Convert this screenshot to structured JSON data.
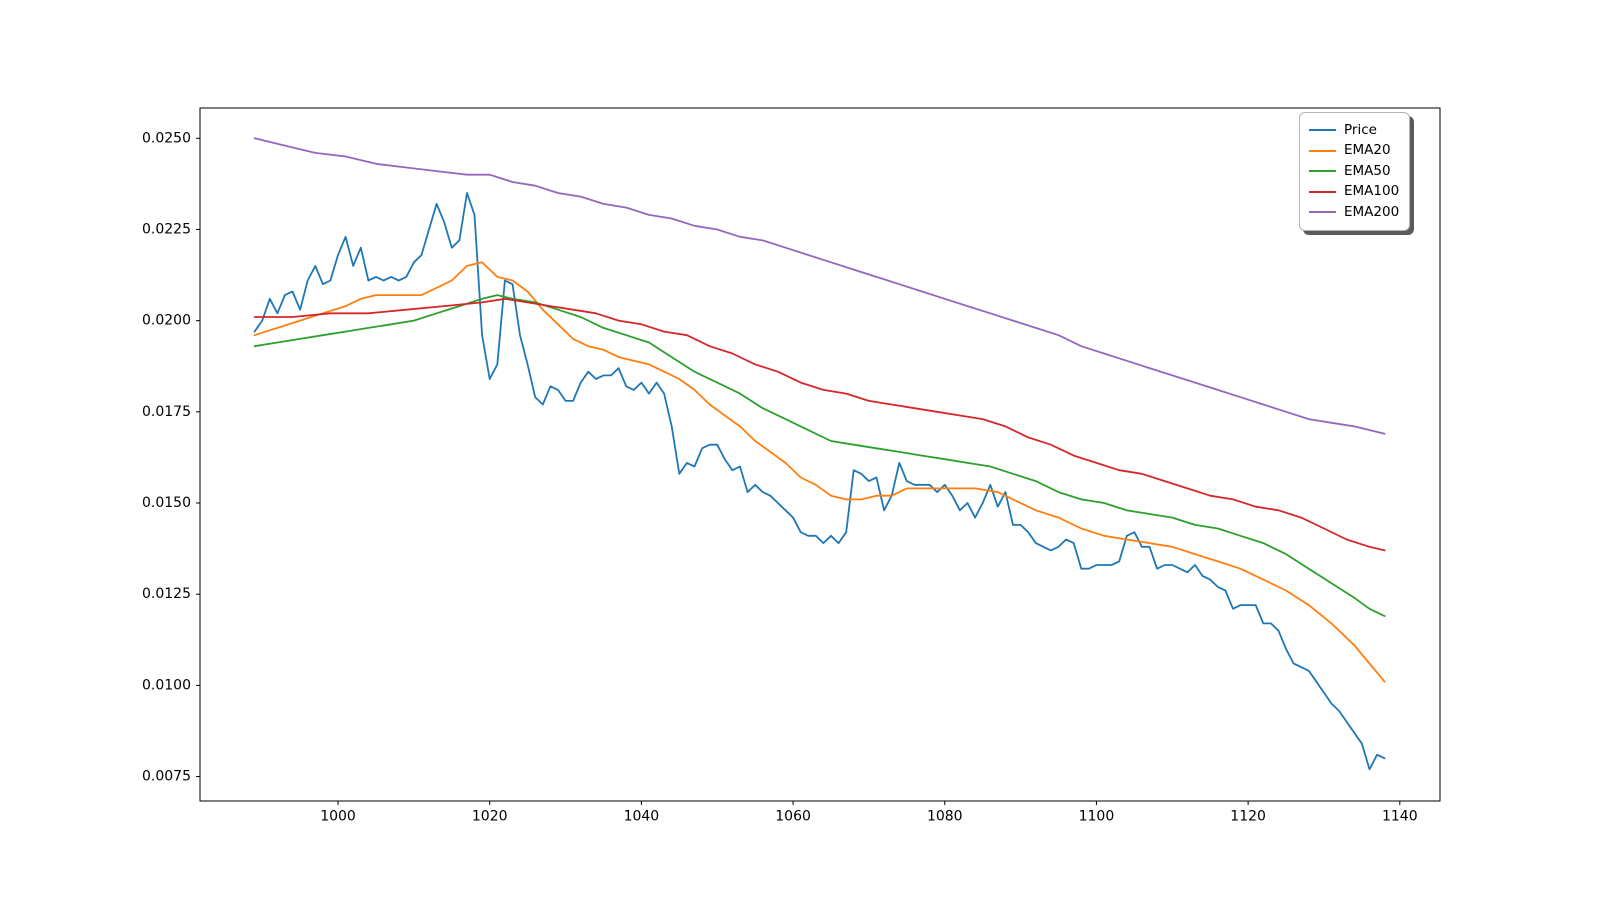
{
  "figure": {
    "kind": "matplotlib-line-chart",
    "background": "#ffffff"
  },
  "legend": {
    "position": "upper right",
    "entries": [
      {
        "label": "Price",
        "color": "#1f77b4"
      },
      {
        "label": "EMA20",
        "color": "#ff7f0e"
      },
      {
        "label": "EMA50",
        "color": "#2ca02c"
      },
      {
        "label": "EMA100",
        "color": "#d62728"
      },
      {
        "label": "EMA200",
        "color": "#9467bd"
      }
    ]
  },
  "chart_data": {
    "type": "line",
    "title": "",
    "xlabel": "",
    "ylabel": "",
    "grid": false,
    "xlim": [
      981.8,
      1145.3
    ],
    "ylim": [
      0.00683,
      0.02583
    ],
    "x_ticks": [
      1000,
      1020,
      1040,
      1060,
      1080,
      1100,
      1120,
      1140
    ],
    "y_ticks": [
      0.0075,
      0.01,
      0.0125,
      0.015,
      0.0175,
      0.02,
      0.0225,
      0.025
    ],
    "y_tick_labels": [
      "0.0075",
      "0.0100",
      "0.0125",
      "0.0150",
      "0.0175",
      "0.0200",
      "0.0225",
      "0.0250"
    ],
    "x_tick_labels": [
      "1000",
      "1020",
      "1040",
      "1060",
      "1080",
      "1100",
      "1120",
      "1140"
    ],
    "series": [
      {
        "name": "Price",
        "color": "#1f77b4",
        "x_start": 989,
        "x_step": 1,
        "values": [
          0.0197,
          0.02,
          0.0206,
          0.0202,
          0.0207,
          0.0208,
          0.0203,
          0.0211,
          0.0215,
          0.021,
          0.0211,
          0.0218,
          0.0223,
          0.0215,
          0.022,
          0.0211,
          0.0212,
          0.0211,
          0.0212,
          0.0211,
          0.0212,
          0.0216,
          0.0218,
          0.0225,
          0.0232,
          0.0227,
          0.022,
          0.0222,
          0.0235,
          0.0229,
          0.0196,
          0.0184,
          0.0188,
          0.0211,
          0.021,
          0.0196,
          0.0188,
          0.0179,
          0.0177,
          0.0182,
          0.0181,
          0.0178,
          0.0178,
          0.0183,
          0.0186,
          0.0184,
          0.0185,
          0.0185,
          0.0187,
          0.0182,
          0.0181,
          0.0183,
          0.018,
          0.0183,
          0.018,
          0.0171,
          0.0158,
          0.0161,
          0.016,
          0.0165,
          0.0166,
          0.0166,
          0.0162,
          0.0159,
          0.016,
          0.0153,
          0.0155,
          0.0153,
          0.0152,
          0.015,
          0.0148,
          0.0146,
          0.0142,
          0.0141,
          0.0141,
          0.0139,
          0.0141,
          0.0139,
          0.0142,
          0.0159,
          0.0158,
          0.0156,
          0.0157,
          0.0148,
          0.0152,
          0.0161,
          0.0156,
          0.0155,
          0.0155,
          0.0155,
          0.0153,
          0.0155,
          0.0152,
          0.0148,
          0.015,
          0.0146,
          0.015,
          0.0155,
          0.0149,
          0.0153,
          0.0144,
          0.0144,
          0.0142,
          0.0139,
          0.0138,
          0.0137,
          0.0138,
          0.014,
          0.0139,
          0.0132,
          0.0132,
          0.0133,
          0.0133,
          0.0133,
          0.0134,
          0.0141,
          0.0142,
          0.0138,
          0.0138,
          0.0132,
          0.0133,
          0.0133,
          0.0132,
          0.0131,
          0.0133,
          0.013,
          0.0129,
          0.0127,
          0.0126,
          0.0121,
          0.0122,
          0.0122,
          0.0122,
          0.0117,
          0.0117,
          0.0115,
          0.011,
          0.0106,
          0.0105,
          0.0104,
          0.0101,
          0.0098,
          0.0095,
          0.0093,
          0.009,
          0.0087,
          0.0084,
          0.0077,
          0.0081,
          0.008
        ]
      },
      {
        "name": "EMA20",
        "color": "#ff7f0e",
        "points": [
          [
            989,
            0.0196
          ],
          [
            992,
            0.0198
          ],
          [
            995,
            0.02
          ],
          [
            998,
            0.0202
          ],
          [
            1001,
            0.0204
          ],
          [
            1003,
            0.0206
          ],
          [
            1005,
            0.0207
          ],
          [
            1008,
            0.0207
          ],
          [
            1011,
            0.0207
          ],
          [
            1013,
            0.0209
          ],
          [
            1015,
            0.0211
          ],
          [
            1017,
            0.0215
          ],
          [
            1019,
            0.0216
          ],
          [
            1021,
            0.0212
          ],
          [
            1023,
            0.0211
          ],
          [
            1025,
            0.0208
          ],
          [
            1027,
            0.0203
          ],
          [
            1029,
            0.0199
          ],
          [
            1031,
            0.0195
          ],
          [
            1033,
            0.0193
          ],
          [
            1035,
            0.0192
          ],
          [
            1037,
            0.019
          ],
          [
            1039,
            0.0189
          ],
          [
            1041,
            0.0188
          ],
          [
            1043,
            0.0186
          ],
          [
            1045,
            0.0184
          ],
          [
            1047,
            0.0181
          ],
          [
            1049,
            0.0177
          ],
          [
            1051,
            0.0174
          ],
          [
            1053,
            0.0171
          ],
          [
            1055,
            0.0167
          ],
          [
            1057,
            0.0164
          ],
          [
            1059,
            0.0161
          ],
          [
            1061,
            0.0157
          ],
          [
            1063,
            0.0155
          ],
          [
            1065,
            0.0152
          ],
          [
            1067,
            0.0151
          ],
          [
            1069,
            0.0151
          ],
          [
            1071,
            0.0152
          ],
          [
            1073,
            0.0152
          ],
          [
            1075,
            0.0154
          ],
          [
            1078,
            0.0154
          ],
          [
            1081,
            0.0154
          ],
          [
            1084,
            0.0154
          ],
          [
            1087,
            0.0153
          ],
          [
            1089,
            0.0151
          ],
          [
            1092,
            0.0148
          ],
          [
            1095,
            0.0146
          ],
          [
            1098,
            0.0143
          ],
          [
            1101,
            0.0141
          ],
          [
            1104,
            0.014
          ],
          [
            1107,
            0.0139
          ],
          [
            1110,
            0.0138
          ],
          [
            1113,
            0.0136
          ],
          [
            1116,
            0.0134
          ],
          [
            1119,
            0.0132
          ],
          [
            1122,
            0.0129
          ],
          [
            1125,
            0.0126
          ],
          [
            1128,
            0.0122
          ],
          [
            1131,
            0.0117
          ],
          [
            1134,
            0.0111
          ],
          [
            1136,
            0.0106
          ],
          [
            1138,
            0.0101
          ]
        ]
      },
      {
        "name": "EMA50",
        "color": "#2ca02c",
        "points": [
          [
            989,
            0.0193
          ],
          [
            992,
            0.0194
          ],
          [
            995,
            0.0195
          ],
          [
            998,
            0.0196
          ],
          [
            1001,
            0.0197
          ],
          [
            1004,
            0.0198
          ],
          [
            1007,
            0.0199
          ],
          [
            1010,
            0.02
          ],
          [
            1013,
            0.0202
          ],
          [
            1016,
            0.0204
          ],
          [
            1019,
            0.0206
          ],
          [
            1021,
            0.0207
          ],
          [
            1023,
            0.0206
          ],
          [
            1026,
            0.0205
          ],
          [
            1029,
            0.0203
          ],
          [
            1032,
            0.0201
          ],
          [
            1035,
            0.0198
          ],
          [
            1038,
            0.0196
          ],
          [
            1041,
            0.0194
          ],
          [
            1044,
            0.019
          ],
          [
            1047,
            0.0186
          ],
          [
            1050,
            0.0183
          ],
          [
            1053,
            0.018
          ],
          [
            1056,
            0.0176
          ],
          [
            1059,
            0.0173
          ],
          [
            1062,
            0.017
          ],
          [
            1065,
            0.0167
          ],
          [
            1068,
            0.0166
          ],
          [
            1071,
            0.0165
          ],
          [
            1074,
            0.0164
          ],
          [
            1077,
            0.0163
          ],
          [
            1080,
            0.0162
          ],
          [
            1083,
            0.0161
          ],
          [
            1086,
            0.016
          ],
          [
            1089,
            0.0158
          ],
          [
            1092,
            0.0156
          ],
          [
            1095,
            0.0153
          ],
          [
            1098,
            0.0151
          ],
          [
            1101,
            0.015
          ],
          [
            1104,
            0.0148
          ],
          [
            1107,
            0.0147
          ],
          [
            1110,
            0.0146
          ],
          [
            1113,
            0.0144
          ],
          [
            1116,
            0.0143
          ],
          [
            1119,
            0.0141
          ],
          [
            1122,
            0.0139
          ],
          [
            1125,
            0.0136
          ],
          [
            1128,
            0.0132
          ],
          [
            1131,
            0.0128
          ],
          [
            1134,
            0.0124
          ],
          [
            1136,
            0.0121
          ],
          [
            1138,
            0.0119
          ]
        ]
      },
      {
        "name": "EMA100",
        "color": "#d62728",
        "points": [
          [
            989,
            0.0201
          ],
          [
            994,
            0.0201
          ],
          [
            999,
            0.0202
          ],
          [
            1004,
            0.0202
          ],
          [
            1009,
            0.0203
          ],
          [
            1014,
            0.0204
          ],
          [
            1019,
            0.0205
          ],
          [
            1022,
            0.0206
          ],
          [
            1025,
            0.0205
          ],
          [
            1028,
            0.0204
          ],
          [
            1031,
            0.0203
          ],
          [
            1034,
            0.0202
          ],
          [
            1037,
            0.02
          ],
          [
            1040,
            0.0199
          ],
          [
            1043,
            0.0197
          ],
          [
            1046,
            0.0196
          ],
          [
            1049,
            0.0193
          ],
          [
            1052,
            0.0191
          ],
          [
            1055,
            0.0188
          ],
          [
            1058,
            0.0186
          ],
          [
            1061,
            0.0183
          ],
          [
            1064,
            0.0181
          ],
          [
            1067,
            0.018
          ],
          [
            1070,
            0.0178
          ],
          [
            1073,
            0.0177
          ],
          [
            1076,
            0.0176
          ],
          [
            1079,
            0.0175
          ],
          [
            1082,
            0.0174
          ],
          [
            1085,
            0.0173
          ],
          [
            1088,
            0.0171
          ],
          [
            1091,
            0.0168
          ],
          [
            1094,
            0.0166
          ],
          [
            1097,
            0.0163
          ],
          [
            1100,
            0.0161
          ],
          [
            1103,
            0.0159
          ],
          [
            1106,
            0.0158
          ],
          [
            1109,
            0.0156
          ],
          [
            1112,
            0.0154
          ],
          [
            1115,
            0.0152
          ],
          [
            1118,
            0.0151
          ],
          [
            1121,
            0.0149
          ],
          [
            1124,
            0.0148
          ],
          [
            1127,
            0.0146
          ],
          [
            1130,
            0.0143
          ],
          [
            1133,
            0.014
          ],
          [
            1136,
            0.0138
          ],
          [
            1138,
            0.0137
          ]
        ]
      },
      {
        "name": "EMA200",
        "color": "#9467bd",
        "points": [
          [
            989,
            0.025
          ],
          [
            993,
            0.0248
          ],
          [
            997,
            0.0246
          ],
          [
            1001,
            0.0245
          ],
          [
            1005,
            0.0243
          ],
          [
            1009,
            0.0242
          ],
          [
            1013,
            0.0241
          ],
          [
            1017,
            0.024
          ],
          [
            1020,
            0.024
          ],
          [
            1023,
            0.0238
          ],
          [
            1026,
            0.0237
          ],
          [
            1029,
            0.0235
          ],
          [
            1032,
            0.0234
          ],
          [
            1035,
            0.0232
          ],
          [
            1038,
            0.0231
          ],
          [
            1041,
            0.0229
          ],
          [
            1044,
            0.0228
          ],
          [
            1047,
            0.0226
          ],
          [
            1050,
            0.0225
          ],
          [
            1053,
            0.0223
          ],
          [
            1056,
            0.0222
          ],
          [
            1059,
            0.022
          ],
          [
            1062,
            0.0218
          ],
          [
            1065,
            0.0216
          ],
          [
            1068,
            0.0214
          ],
          [
            1071,
            0.0212
          ],
          [
            1074,
            0.021
          ],
          [
            1077,
            0.0208
          ],
          [
            1080,
            0.0206
          ],
          [
            1083,
            0.0204
          ],
          [
            1086,
            0.0202
          ],
          [
            1089,
            0.02
          ],
          [
            1092,
            0.0198
          ],
          [
            1095,
            0.0196
          ],
          [
            1098,
            0.0193
          ],
          [
            1101,
            0.0191
          ],
          [
            1104,
            0.0189
          ],
          [
            1107,
            0.0187
          ],
          [
            1110,
            0.0185
          ],
          [
            1113,
            0.0183
          ],
          [
            1116,
            0.0181
          ],
          [
            1119,
            0.0179
          ],
          [
            1122,
            0.0177
          ],
          [
            1125,
            0.0175
          ],
          [
            1128,
            0.0173
          ],
          [
            1131,
            0.0172
          ],
          [
            1134,
            0.0171
          ],
          [
            1138,
            0.0169
          ]
        ]
      }
    ]
  }
}
